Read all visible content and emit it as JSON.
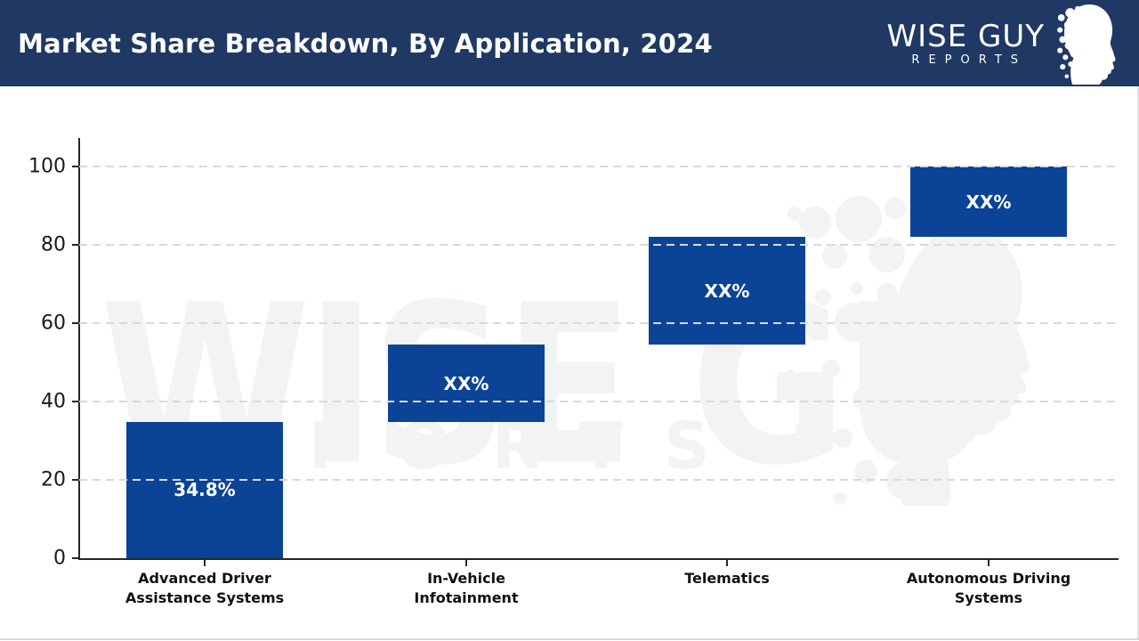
{
  "header": {
    "title": "Market Share Breakdown, By Application, 2024",
    "logo": {
      "line1": "WISE GUY",
      "line2": "REPORTS"
    }
  },
  "watermark": {
    "line1": "WISE GU",
    "line2": "REPORTS"
  },
  "chart_data": {
    "type": "bar",
    "subtype": "waterfall",
    "title": "Market Share Breakdown, By Application, 2024",
    "categories": [
      "Advanced Driver\nAssistance Systems",
      "In-Vehicle\nInfotainment",
      "Telematics",
      "Autonomous Driving\nSystems"
    ],
    "segments": [
      {
        "category": "Advanced Driver Assistance Systems",
        "start": 0,
        "end": 34.8,
        "label": "34.8%"
      },
      {
        "category": "In-Vehicle Infotainment",
        "start": 34.8,
        "end": 54.5,
        "label": "XX%"
      },
      {
        "category": "Telematics",
        "start": 54.5,
        "end": 82,
        "label": "XX%"
      },
      {
        "category": "Autonomous Driving Systems",
        "start": 82,
        "end": 100,
        "label": "XX%"
      }
    ],
    "ylim": [
      0,
      100
    ],
    "yticks": [
      0,
      20,
      40,
      60,
      80,
      100
    ],
    "xlabel": "",
    "ylabel": "",
    "grid": "horizontal-dashed",
    "legend": "none",
    "bar_color": "#0b4397",
    "bar_label_color": "#ffffff"
  },
  "colors": {
    "header_bg": "#1f3864",
    "bar_fill": "#0b4397",
    "gridline": "#d9d9d9",
    "axis": "#262626",
    "watermark": "#f2f3f5",
    "bottom_rule": "#d9d9d9"
  }
}
